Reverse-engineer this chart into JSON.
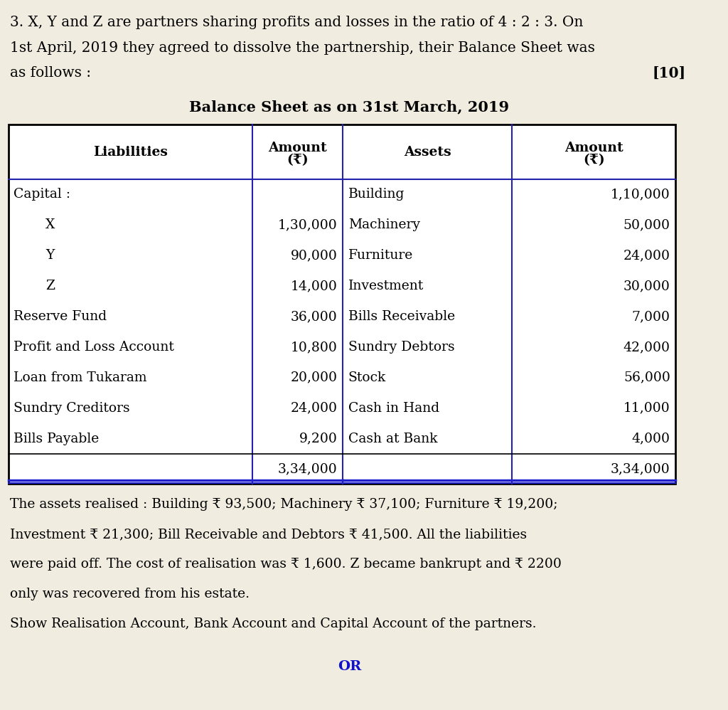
{
  "bg_color": "#f0ece0",
  "title_text": "Balance Sheet as on 31st March, 2019",
  "header_line1": "3. X, Y and Z are partners sharing profits and losses in the ratio of 4 : 2 : 3. On",
  "header_line2": "1st April, 2019 they agreed to dissolve the partnership, their Balance Sheet was",
  "header_line3": "as follows :",
  "marks": "[10]",
  "liabilities_col_header": "Liabilities",
  "amount_col_header1": "Amount\n(₹)",
  "assets_col_header": "Assets",
  "amount_col_header2": "Amount\n(₹)",
  "liabilities": [
    "Capital :",
    "X",
    "Y",
    "Z",
    "Reserve Fund",
    "Profit and Loss Account",
    "Loan from Tukaram",
    "Sundry Creditors",
    "Bills Payable"
  ],
  "liabilities_indent": [
    false,
    true,
    true,
    true,
    false,
    false,
    false,
    false,
    false
  ],
  "liabilities_amounts": [
    "",
    "1,30,000",
    "90,000",
    "14,000",
    "36,000",
    "10,800",
    "20,000",
    "24,000",
    "9,200"
  ],
  "liabilities_total": "3,34,000",
  "assets": [
    "Building",
    "Machinery",
    "Furniture",
    "Investment",
    "Bills Receivable",
    "Sundry Debtors",
    "Stock",
    "Cash in Hand",
    "Cash at Bank"
  ],
  "assets_amounts": [
    "1,10,000",
    "50,000",
    "24,000",
    "30,000",
    "7,000",
    "42,000",
    "56,000",
    "11,000",
    "4,000"
  ],
  "assets_total": "3,34,000",
  "footer_line1": "The assets realised : Building ₹ 93,500; Machinery ₹ 37,100; Furniture ₹ 19,200;",
  "footer_line2": "Investment ₹ 21,300; Bill Receivable and Debtors ₹ 41,500. All the liabilities",
  "footer_line3": "were paid off. The cost of realisation was ₹ 1,600. Z became bankrupt and ₹ 2200",
  "footer_line4": "only was recovered from his estate.",
  "footer_line5": "Show Realisation Account, Bank Account and Capital Account of the partners.",
  "or_text": "OR",
  "table_border_color": "#2222aa",
  "table_inner_color": "#2222aa",
  "table_outer_color": "#000000",
  "total_line_color": "#2222cc"
}
